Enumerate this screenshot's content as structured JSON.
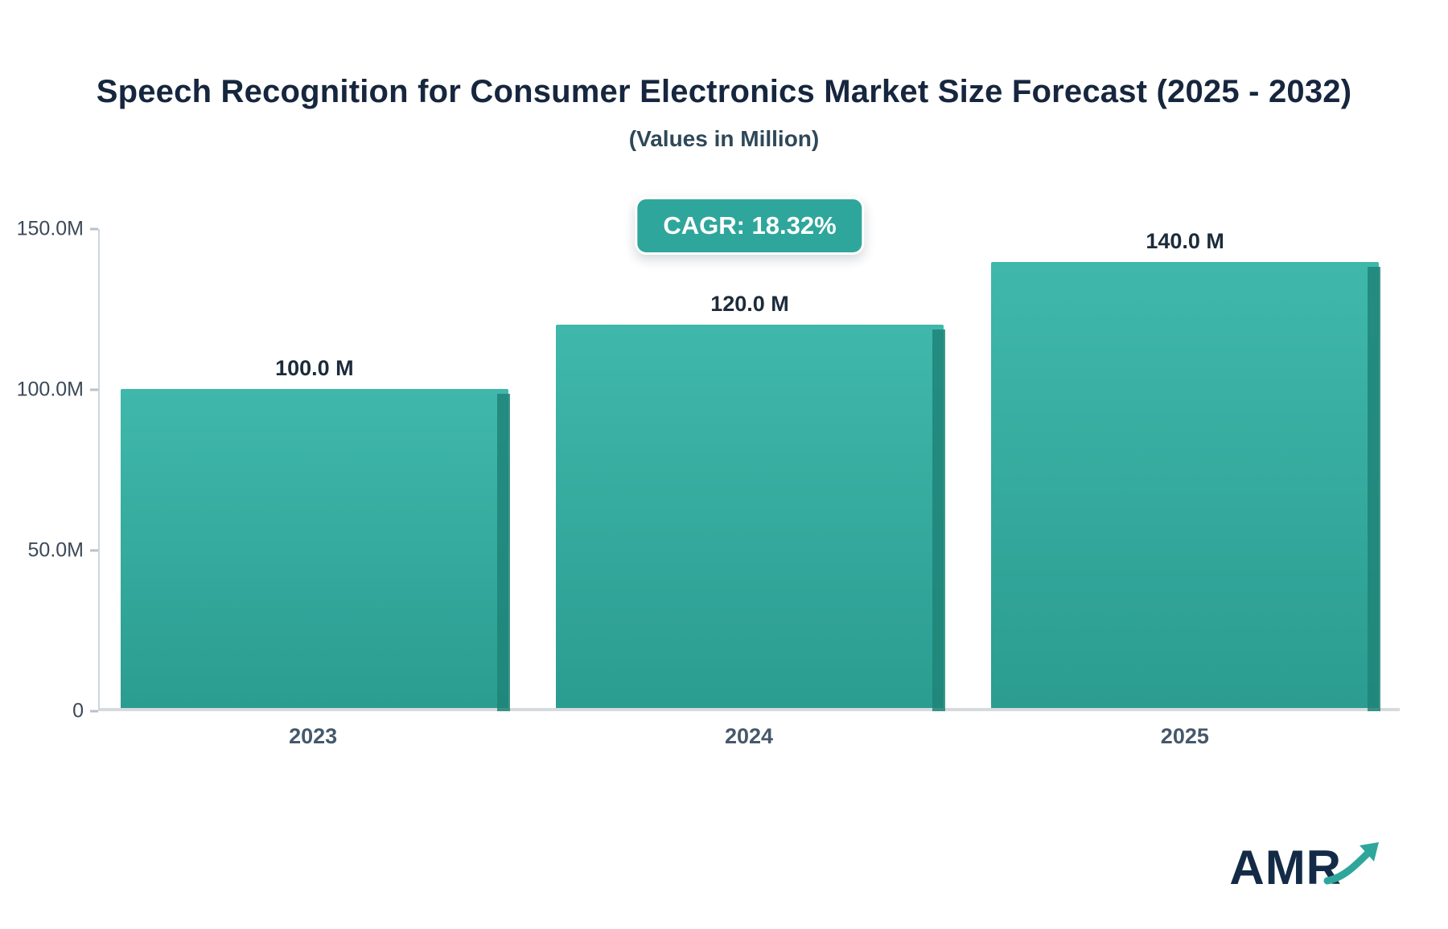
{
  "chart_data": {
    "type": "bar",
    "title": "Speech Recognition for Consumer Electronics Market Size Forecast (2025 - 2032)",
    "subtitle": "(Values in Million)",
    "categories": [
      "2023",
      "2024",
      "2025"
    ],
    "values": [
      100,
      120,
      140
    ],
    "value_labels": [
      "100.0 M",
      "120.0 M",
      "140.0 M"
    ],
    "ylim": [
      0,
      150
    ],
    "yticks": [
      "150.0M",
      "100.0M",
      "50.0M",
      "0"
    ],
    "ylabel": "",
    "xlabel": "",
    "grid": "off",
    "legend": "none",
    "annotations": [
      {
        "label": "CAGR: 18.32%"
      }
    ],
    "colors": {
      "bar_top": "#3fb8ab",
      "bar_bottom": "#2b9c90",
      "bar_side": "#1f8478",
      "badge": "#2fa69b",
      "title": "#16263e"
    }
  },
  "badge": {
    "label": "CAGR: 18.32%"
  },
  "branding": {
    "logo_text": "AMR"
  }
}
